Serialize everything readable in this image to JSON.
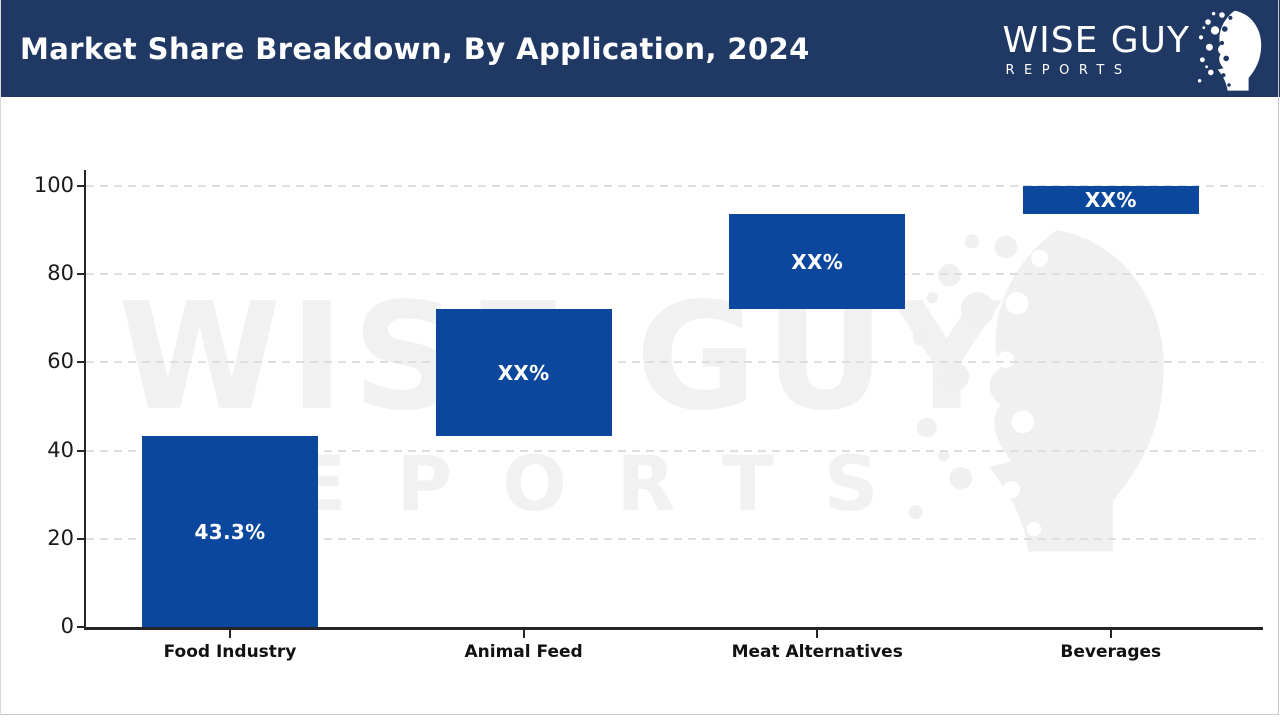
{
  "header": {
    "title": "Market Share Breakdown, By Application, 2024",
    "bg_color": "#1f3864",
    "logo": {
      "name": "WISE GUY",
      "sub": "REPORTS"
    }
  },
  "watermark": {
    "line1": "WISE GUY",
    "line2": "REPORTS"
  },
  "chart_data": {
    "type": "bar",
    "subtype": "floating-waterfall-bars",
    "title": "Market Share Breakdown, By Application, 2024",
    "categories": [
      "Food Industry",
      "Animal Feed",
      "Meat Alternatives",
      "Beverages"
    ],
    "segments": [
      {
        "category": "Food Industry",
        "start": 0,
        "end": 43.3,
        "label": "43.3%"
      },
      {
        "category": "Animal Feed",
        "start": 43.3,
        "end": 72,
        "label": "XX%"
      },
      {
        "category": "Meat Alternatives",
        "start": 72,
        "end": 93.7,
        "label": "XX%"
      },
      {
        "category": "Beverages",
        "start": 93.7,
        "end": 100,
        "label": "XX%"
      }
    ],
    "yticks": [
      0,
      20,
      40,
      60,
      80,
      100
    ],
    "ylim": [
      0,
      100
    ],
    "xlabel": "",
    "ylabel": "",
    "grid": "dashed-horizontal",
    "legend": "none",
    "bar_color": "#0c479e",
    "bar_label_color": "#ffffff",
    "axis_color": "#262626",
    "grid_color": "#dedede",
    "tick_label_color": "#1a1a1a"
  }
}
